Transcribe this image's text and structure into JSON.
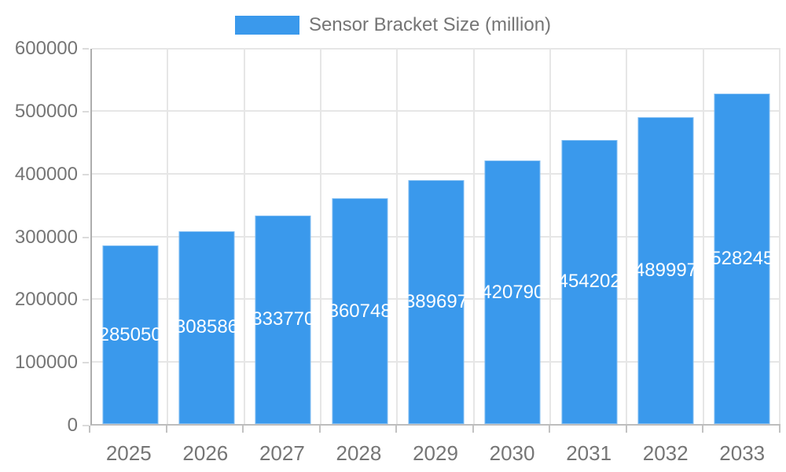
{
  "legend": {
    "label": "Sensor Bracket Size (million)"
  },
  "colors": {
    "bar": "#3A99EC",
    "bar_label": "#FFFFFF",
    "grid_line": "#E6E6E6",
    "axis_line": "#ADADAD",
    "tick_label": "#757575",
    "background": "#FFFFFF"
  },
  "chart_data": {
    "type": "bar",
    "title": "Sensor Bracket Size (million)",
    "legend_position": "top",
    "grid": true,
    "categories": [
      "2025",
      "2026",
      "2027",
      "2028",
      "2029",
      "2030",
      "2031",
      "2032",
      "2033"
    ],
    "series": [
      {
        "name": "Sensor Bracket Size (million)",
        "values": [
          285050,
          308586,
          333770,
          360748,
          389697,
          420790,
          454202,
          489997,
          528245
        ]
      }
    ],
    "data_labels": [
      "285050",
      "308586",
      "333770",
      "360748",
      "389697",
      "420790",
      "454202",
      "489997",
      "528245"
    ],
    "data_label_position": "inside-center",
    "xlabel": "",
    "ylabel": "",
    "ylim": [
      0,
      600000
    ],
    "ytick_step": 100000,
    "ytick_labels": [
      "0",
      "100000",
      "200000",
      "300000",
      "400000",
      "500000",
      "600000"
    ],
    "bar_band_fraction": 0.73
  }
}
